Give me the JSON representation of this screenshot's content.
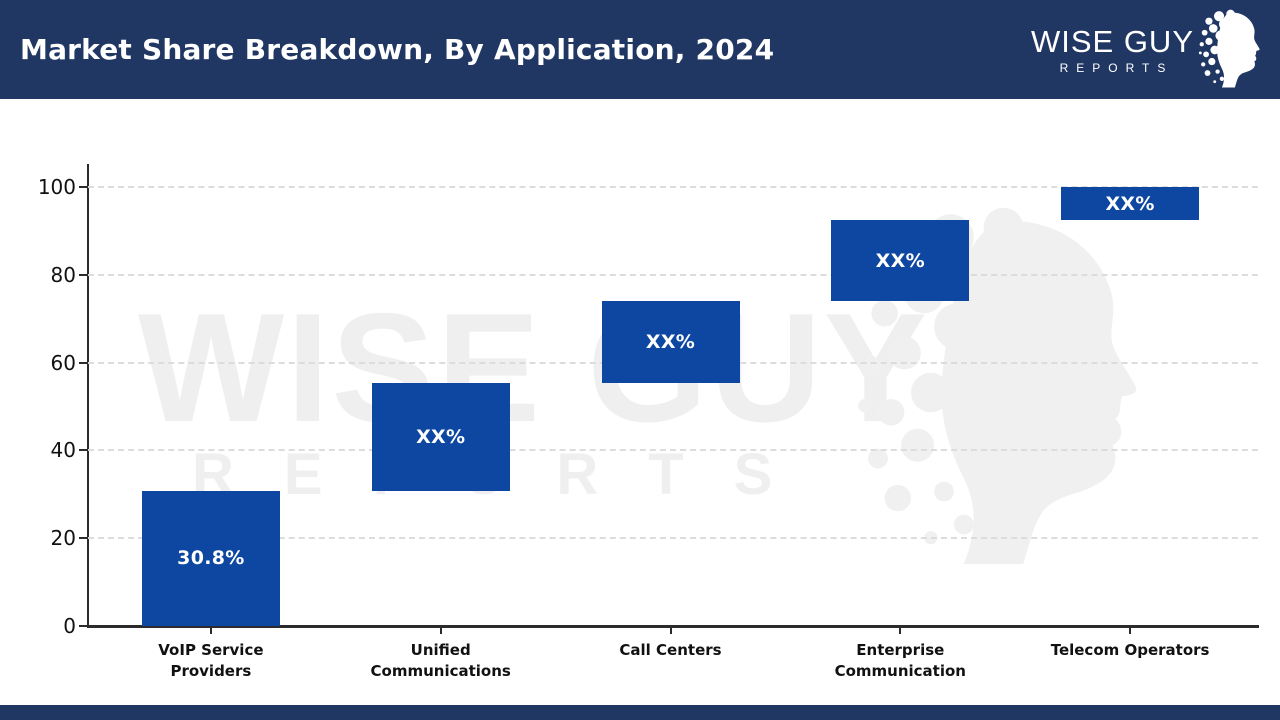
{
  "header": {
    "title": "Market Share Breakdown, By Application, 2024",
    "logo": {
      "line1": "WISE GUY",
      "line2": "REPORTS"
    }
  },
  "watermark": {
    "line1": "WISE GUY",
    "line2": "REPORTS"
  },
  "colors": {
    "header_bg": "#213763",
    "bar_blue": "#0d47a1",
    "axis": "#2b2b2b",
    "grid": "#dcdcdc",
    "bar_label_text": "#ffffff",
    "watermark": "#efefef"
  },
  "chart_data": {
    "type": "bar",
    "subtype": "waterfall-floating-bars",
    "title": "Market Share Breakdown, By Application, 2024",
    "xlabel": "",
    "ylabel": "",
    "ylim": [
      0,
      100
    ],
    "yticks": [
      0,
      20,
      40,
      60,
      80,
      100
    ],
    "grid": true,
    "legend": false,
    "bar_color": "#0d47a1",
    "categories": [
      "VoIP Service\nProviders",
      "Unified\nCommunications",
      "Call Centers",
      "Enterprise\nCommunication",
      "Telecom Operators"
    ],
    "series": [
      {
        "name": "Market Share",
        "segments": [
          {
            "start": 0,
            "end": 30.8,
            "label": "30.8%"
          },
          {
            "start": 30.8,
            "end": 55.4,
            "label": "XX%"
          },
          {
            "start": 55.4,
            "end": 74.0,
            "label": "XX%"
          },
          {
            "start": 74.0,
            "end": 92.4,
            "label": "XX%"
          },
          {
            "start": 92.4,
            "end": 100,
            "label": "XX%"
          }
        ]
      }
    ]
  }
}
